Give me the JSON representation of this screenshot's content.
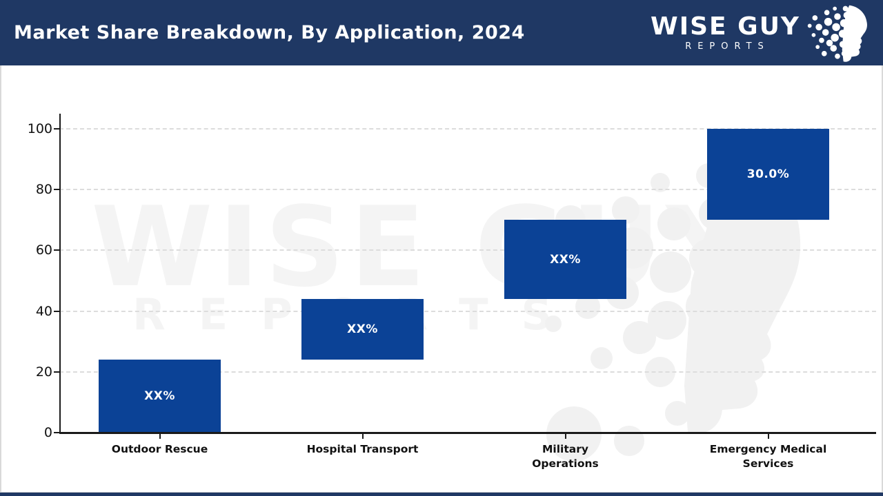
{
  "header": {
    "title": "Market Share Breakdown, By Application, 2024",
    "brand": {
      "line1": "WISE GUY",
      "line2": "REPORTS"
    },
    "bg_color": "#1f3864"
  },
  "watermark": {
    "line1": "WISE GUY",
    "line2": "REPORTS"
  },
  "chart_data": {
    "type": "bar",
    "subtype": "waterfall",
    "title": "Market Share Breakdown, By Application, 2024",
    "categories": [
      "Outdoor Rescue",
      "Hospital Transport",
      "Military Operations",
      "Emergency Medical Services"
    ],
    "segments": [
      {
        "label": "Outdoor Rescue",
        "tick_label": "Outdoor Rescue",
        "start": 0,
        "end": 24,
        "value_label": "XX%"
      },
      {
        "label": "Hospital Transport",
        "tick_label": "Hospital Transport",
        "start": 24,
        "end": 44,
        "value_label": "XX%"
      },
      {
        "label": "Military Operations",
        "tick_label": "Military\nOperations",
        "start": 44,
        "end": 70,
        "value_label": "XX%"
      },
      {
        "label": "Emergency Medical Services",
        "tick_label": "Emergency Medical\nServices",
        "start": 70,
        "end": 100,
        "value_label": "30.0%"
      }
    ],
    "y_ticks": [
      0,
      20,
      40,
      60,
      80,
      100
    ],
    "ylim": [
      0,
      100
    ],
    "xlabel": "",
    "ylabel": "",
    "bar_color": "#0b4296",
    "grid": "horizontal dashed",
    "legend": "none"
  }
}
